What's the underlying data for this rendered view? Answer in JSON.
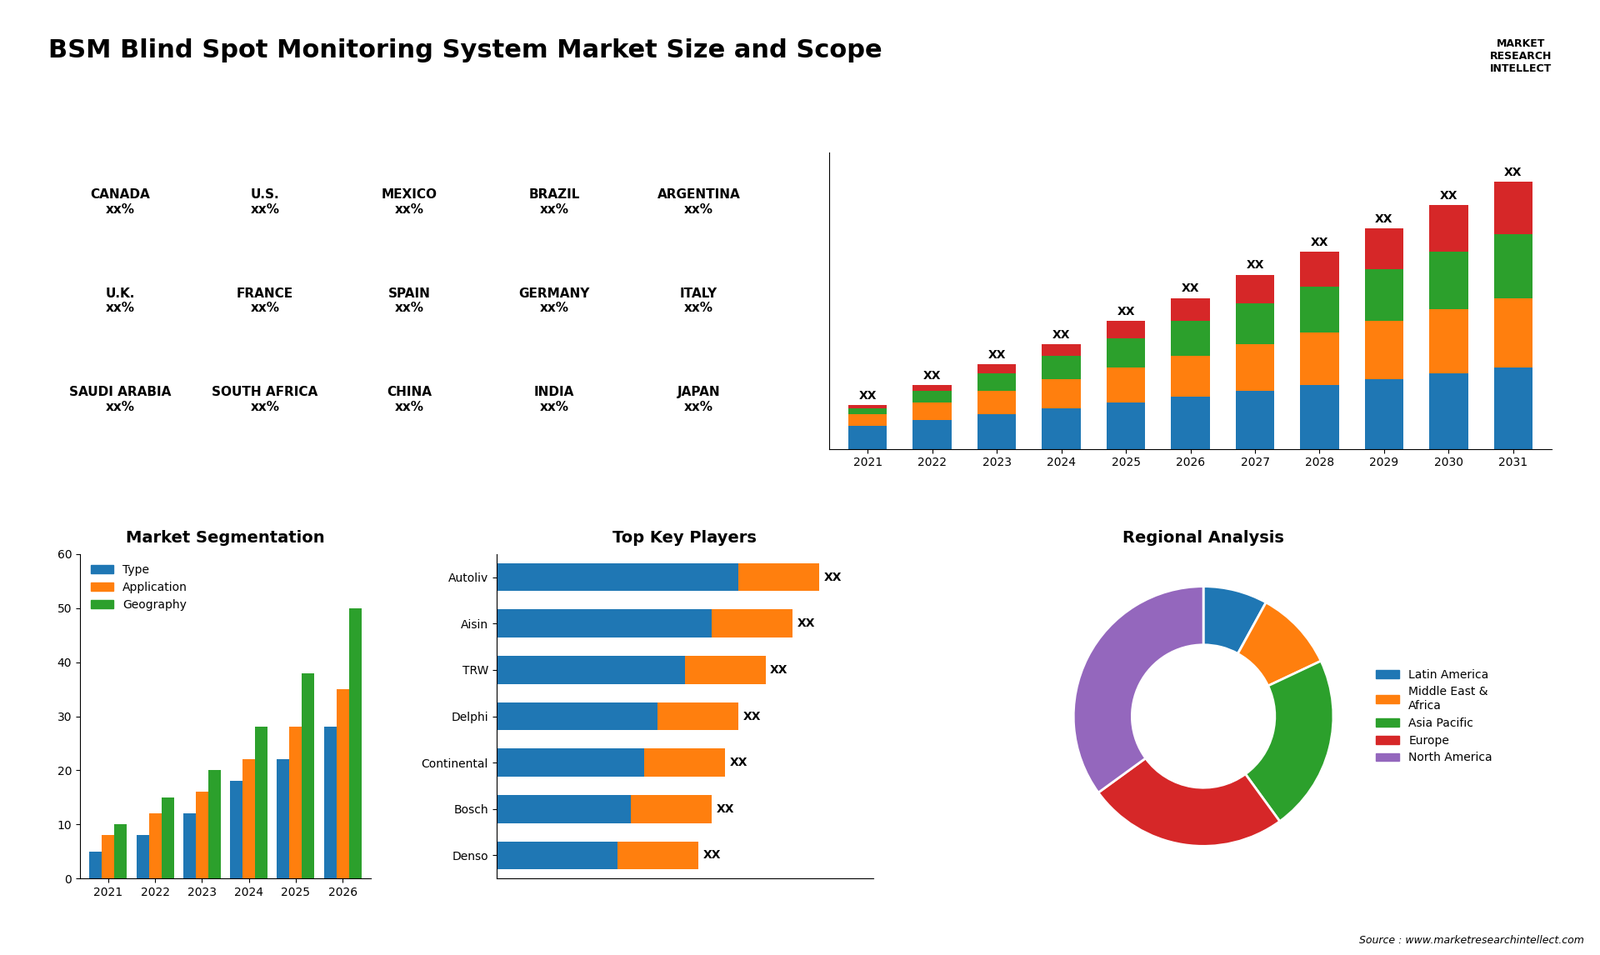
{
  "title": "BSM Blind Spot Monitoring System Market Size and Scope",
  "annotations": [
    "Source : www.marketresearchintellect.com",
    "MARKET\nRESEARCH\nINTELLECT"
  ],
  "chart_data": [
    {
      "type": "text",
      "annotations": [
        "CANADA\nxx%",
        "U.S.\nxx%",
        "MEXICO\nxx%",
        "BRAZIL\nxx%",
        "ARGENTINA\nxx%",
        "U.K.\nxx%",
        "FRANCE\nxx%",
        "SPAIN\nxx%",
        "GERMANY\nxx%",
        "ITALY\nxx%",
        "SAUDI ARABIA\nxx%",
        "SOUTH AFRICA\nxx%",
        "CHINA\nxx%",
        "INDIA\nxx%",
        "JAPAN\nxx%"
      ]
    },
    {
      "type": "bar",
      "stacked": true,
      "categories": [
        "2021",
        "2022",
        "2023",
        "2024",
        "2025",
        "2026",
        "2027",
        "2028",
        "2029",
        "2030",
        "2031"
      ],
      "series": [
        {
          "values": [
            2,
            2.5,
            3,
            3.5,
            4,
            4.5,
            5,
            5.5,
            6,
            6.5,
            7
          ]
        },
        {
          "values": [
            1,
            1.5,
            2,
            2.5,
            3,
            3.5,
            4,
            4.5,
            5,
            5.5,
            6
          ]
        },
        {
          "values": [
            0.5,
            1,
            1.5,
            2,
            2.5,
            3,
            3.5,
            4,
            4.5,
            5,
            5.5
          ]
        },
        {
          "values": [
            0.3,
            0.5,
            0.8,
            1,
            1.5,
            2,
            2.5,
            3,
            3.5,
            4,
            4.5
          ]
        }
      ],
      "value_labels": [
        "XX",
        "XX",
        "XX",
        "XX",
        "XX",
        "XX",
        "XX",
        "XX",
        "XX",
        "XX",
        "XX"
      ],
      "ylim": [
        0,
        25.5
      ],
      "tick_labels": "x"
    },
    {
      "type": "bar",
      "title": "Market Segmentation",
      "categories": [
        "2021",
        "2022",
        "2023",
        "2024",
        "2025",
        "2026"
      ],
      "series": [
        {
          "name": "Type",
          "values": [
            5,
            8,
            12,
            18,
            22,
            28
          ]
        },
        {
          "name": "Application",
          "values": [
            8,
            12,
            16,
            22,
            28,
            35
          ]
        },
        {
          "name": "Geography",
          "values": [
            10,
            15,
            20,
            28,
            38,
            50
          ]
        }
      ],
      "ylim": [
        0,
        60
      ],
      "yticks": [
        0,
        10,
        20,
        30,
        40,
        50,
        60
      ],
      "legend": "upper left"
    },
    {
      "type": "bar",
      "orientation": "horizontal",
      "stacked": true,
      "title": "Top Key Players",
      "categories": [
        "Autoliv",
        "Aisin",
        "TRW",
        "Delphi",
        "Continental",
        "Bosch",
        "Denso"
      ],
      "series": [
        {
          "values": [
            9,
            8,
            7,
            6,
            5.5,
            5,
            4.5
          ]
        },
        {
          "values": [
            3,
            3,
            3,
            3,
            3,
            3,
            3
          ]
        }
      ],
      "value_labels": [
        "XX",
        "XX",
        "XX",
        "XX",
        "XX",
        "XX",
        "XX"
      ],
      "xlim": [
        0,
        14
      ],
      "tick_labels": "y"
    },
    {
      "type": "pie",
      "title": "Regional Analysis",
      "categories": [
        "Latin America",
        "Middle East &\nAfrica",
        "Asia Pacific",
        "Europe",
        "North America"
      ],
      "values": [
        8,
        10,
        22,
        25,
        35
      ],
      "legend": "center left"
    }
  ]
}
